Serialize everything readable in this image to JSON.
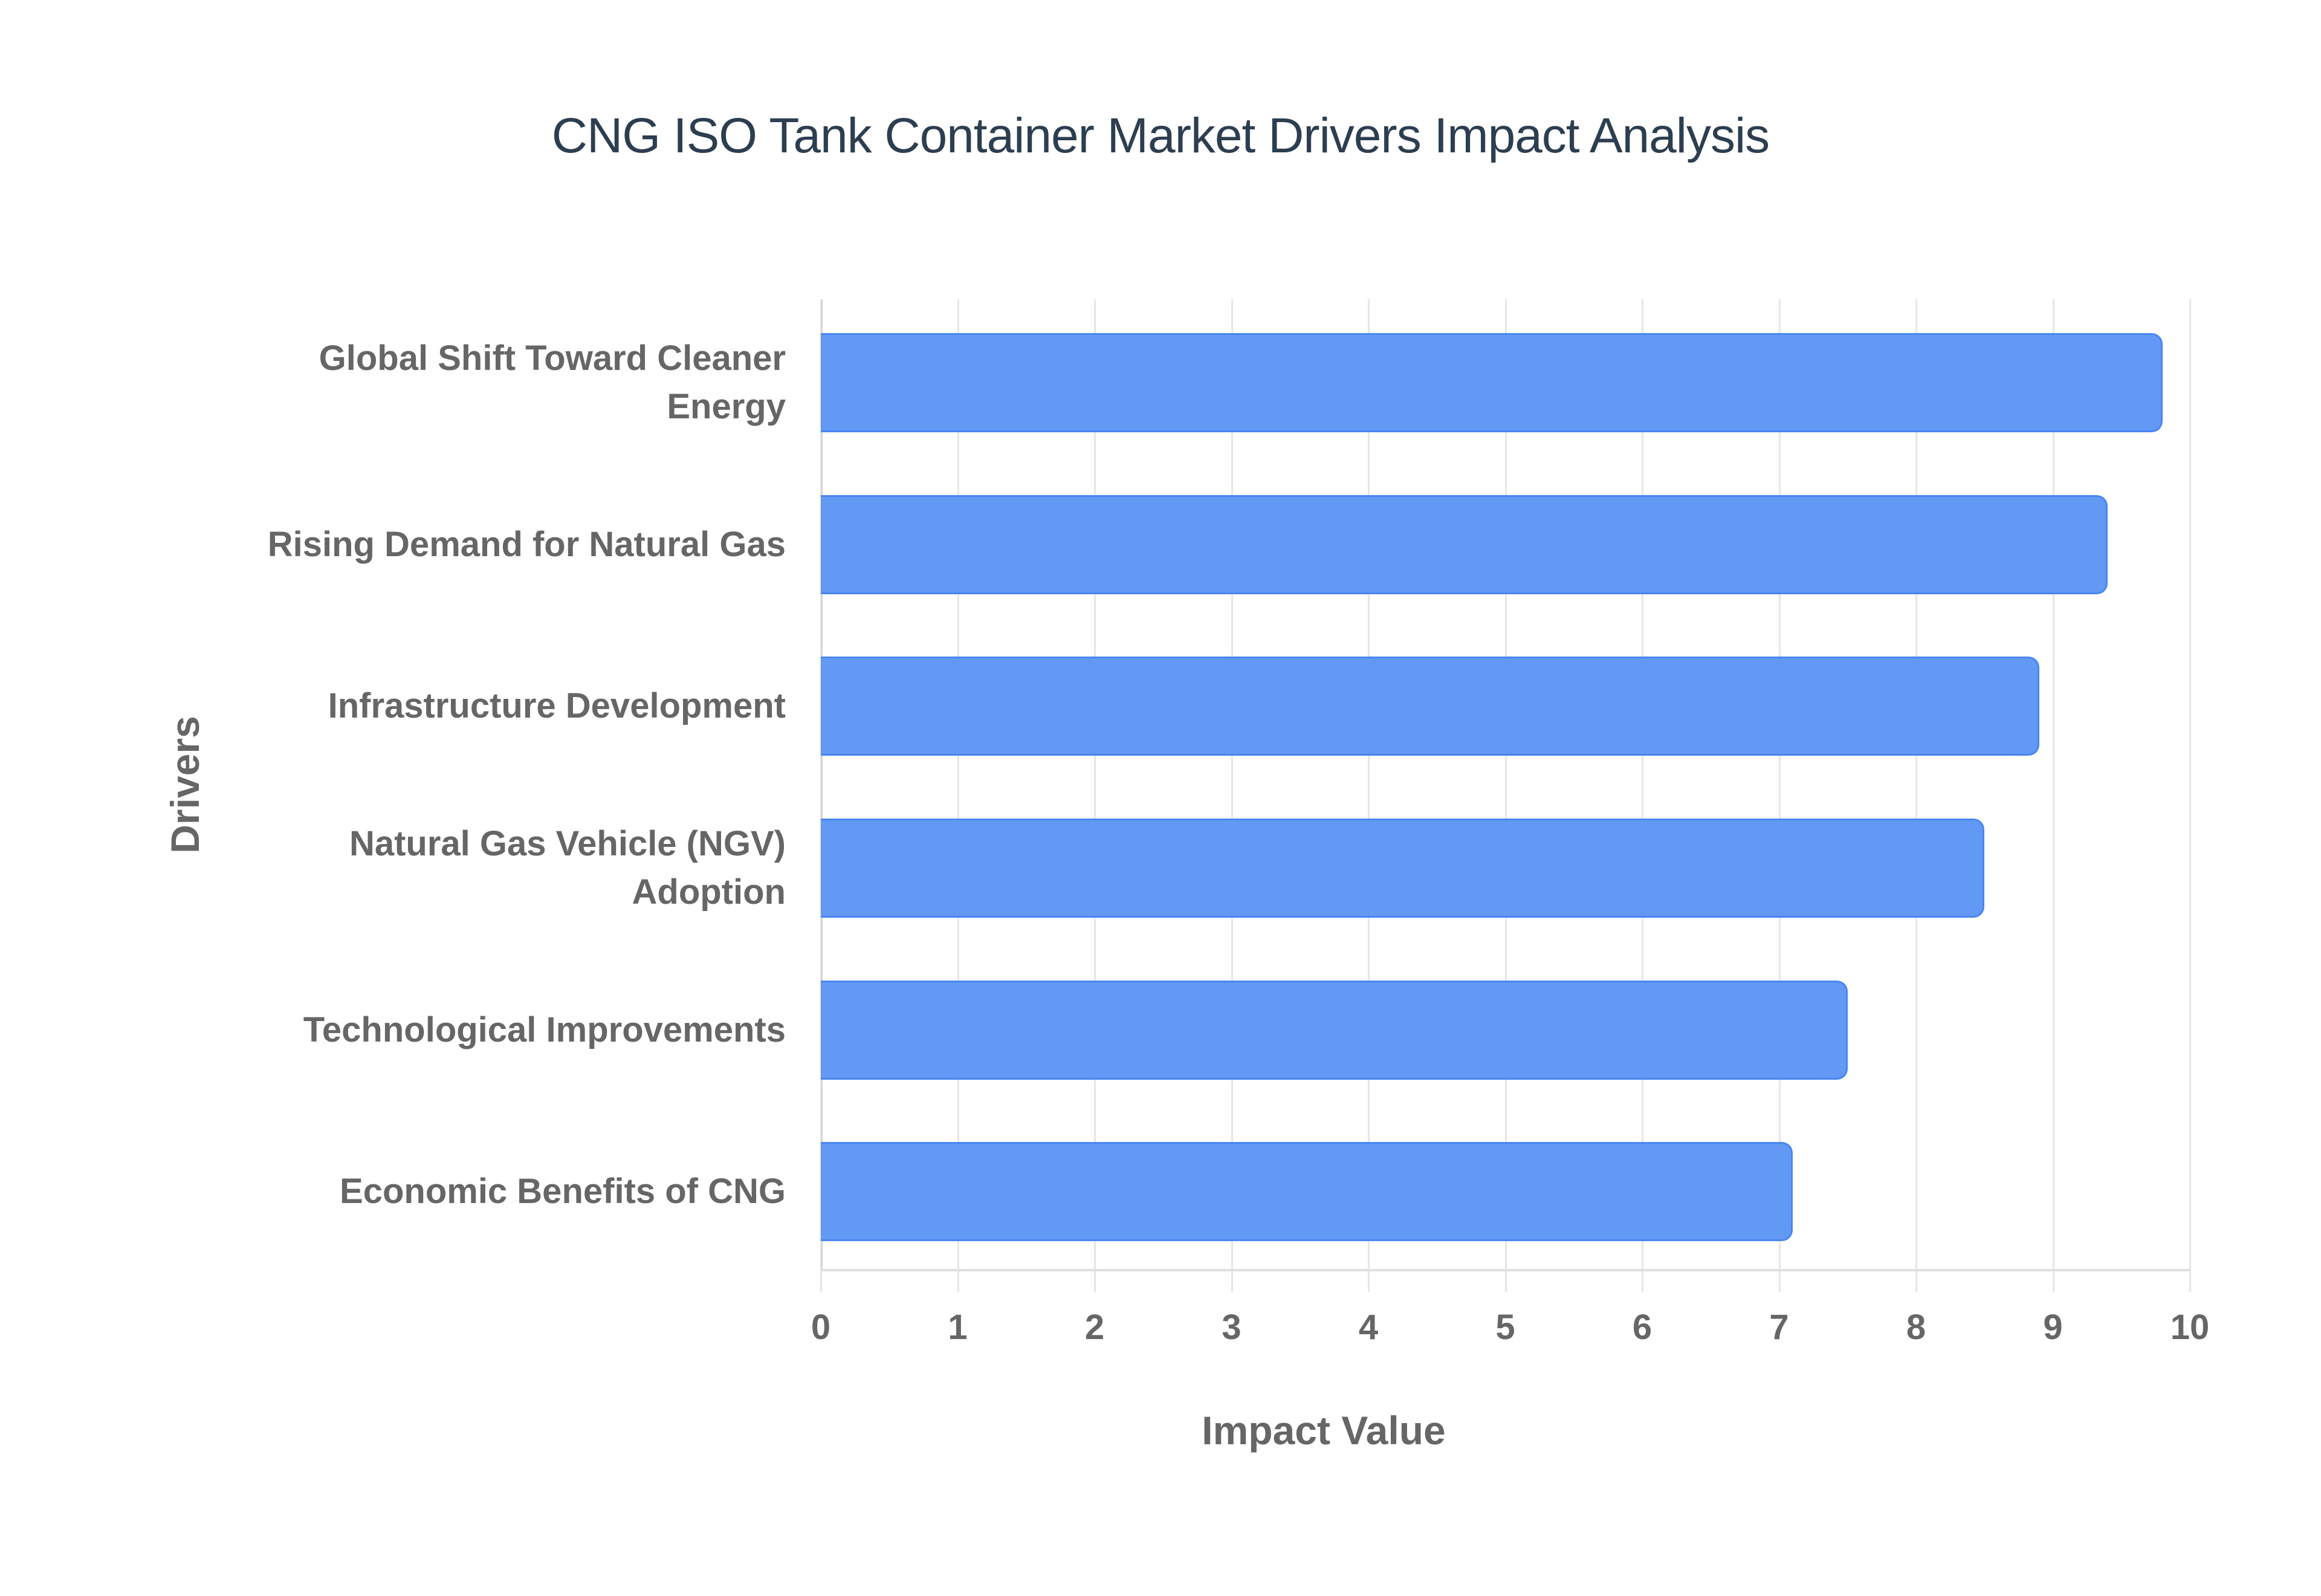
{
  "chart_data": {
    "type": "bar",
    "orientation": "horizontal",
    "title": "CNG ISO Tank Container Market Drivers Impact Analysis",
    "xlabel": "Impact Value",
    "ylabel": "Drivers",
    "xlim": [
      0,
      10
    ],
    "x_ticks": [
      "0",
      "1",
      "2",
      "3",
      "4",
      "5",
      "6",
      "7",
      "8",
      "9",
      "10"
    ],
    "grid": true,
    "legend": null,
    "bar_color": "#6299f5",
    "categories": [
      "Global Shift Toward Cleaner Energy",
      "Rising Demand for Natural Gas",
      "Infrastructure Development",
      "Natural Gas Vehicle (NGV) Adoption",
      "Technological Improvements",
      "Economic Benefits of CNG"
    ],
    "values": [
      9.8,
      9.4,
      8.9,
      8.5,
      7.5,
      7.1
    ]
  },
  "labels": {
    "title": "CNG ISO Tank Container Market Drivers Impact Analysis",
    "xlabel": "Impact Value",
    "ylabel": "Drivers",
    "y_categories_display": [
      "Global Shift Toward Cleaner\nEnergy",
      "Rising Demand for Natural Gas",
      "Infrastructure Development",
      "Natural Gas Vehicle (NGV)\nAdoption",
      "Technological Improvements",
      "Economic Benefits of CNG"
    ]
  }
}
